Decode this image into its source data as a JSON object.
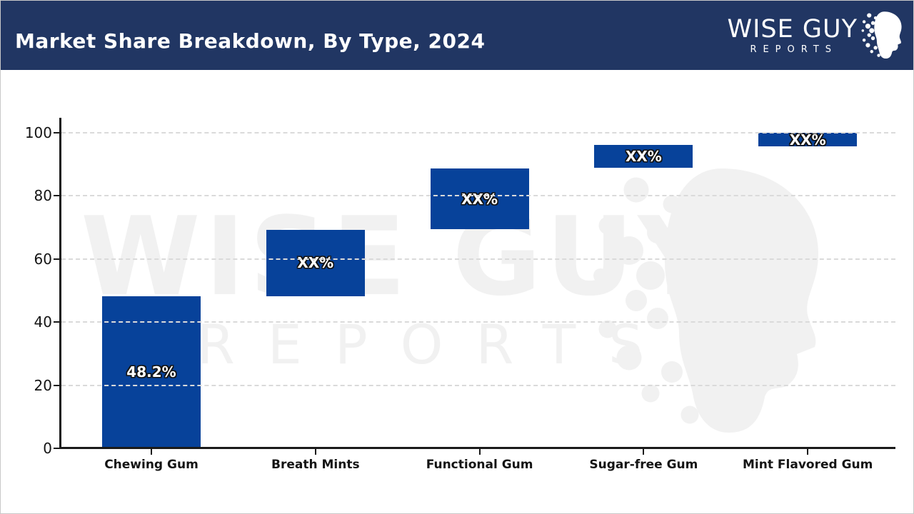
{
  "header": {
    "title": "Market Share Breakdown, By Type, 2024",
    "background_color": "#213663",
    "logo": {
      "line1": "WISE GUY",
      "line2": "REPORTS"
    }
  },
  "watermark": {
    "line1": "WISE GUY",
    "line2": "REPORTS"
  },
  "chart_data": {
    "type": "bar",
    "subtype": "floating-waterfall",
    "title": "Market Share Breakdown, By Type, 2024",
    "categories": [
      "Chewing Gum",
      "Breath Mints",
      "Functional Gum",
      "Sugar-free Gum",
      "Mint Flavored Gum"
    ],
    "segments": [
      {
        "category": "Chewing Gum",
        "start": 0,
        "end": 48.2,
        "label": "48.2%"
      },
      {
        "category": "Breath Mints",
        "start": 48.2,
        "end": 69.3,
        "label": "XX%"
      },
      {
        "category": "Functional Gum",
        "start": 69.4,
        "end": 88.7,
        "label": "XX%"
      },
      {
        "category": "Sugar-free Gum",
        "start": 89.0,
        "end": 96.2,
        "label": "XX%"
      },
      {
        "category": "Mint Flavored Gum",
        "start": 95.7,
        "end": 100.0,
        "label": "XX%"
      }
    ],
    "ylim": [
      0,
      100
    ],
    "yticks": [
      0,
      20,
      40,
      60,
      80,
      100
    ],
    "xlabel": "",
    "ylabel": "",
    "grid": "horizontal-dashed, drawn above bars",
    "legend": "none",
    "bar_color": "#07429a",
    "bar_label_style": "white bold with black outline"
  }
}
